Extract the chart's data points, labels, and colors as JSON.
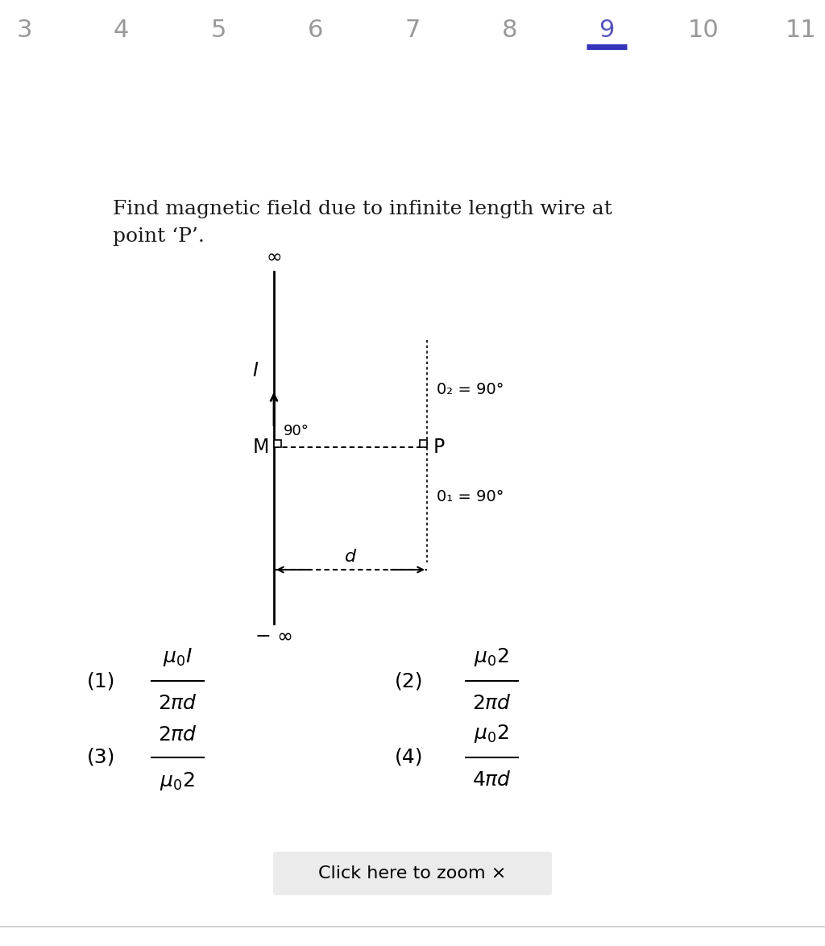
{
  "bg_color": "#ffffff",
  "nav_numbers": [
    "3",
    "4",
    "5",
    "6",
    "7",
    "8",
    "9",
    "10",
    "11"
  ],
  "nav_active": "9",
  "nav_color": "#5555bb",
  "nav_inactive_color": "#999999",
  "nav_underline_color": "#3333bb",
  "question_fontsize": 18,
  "diagram": {
    "inf_top_label": "∞",
    "inf_bottom_label": "− ∞",
    "I_label": "I",
    "M_label": "M",
    "P_label": "P",
    "theta2_label": "0₂ = 90°",
    "theta1_label": "0₁ = 90°",
    "angle90_label": "90°",
    "d_label": "d"
  },
  "options": [
    {
      "num": "(1)",
      "numer": "$\\mu_0 I$",
      "denom": "$2\\pi d$"
    },
    {
      "num": "(2)",
      "numer": "$\\mu_0 2$",
      "denom": "$2\\pi d$"
    },
    {
      "num": "(3)",
      "numer": "$2\\pi d$",
      "denom": "$\\mu_0 2$"
    },
    {
      "num": "(4)",
      "numer": "$\\mu_0 2$",
      "denom": "$4\\pi d$"
    }
  ],
  "click_zoom_text": "Click here to zoom ⨯",
  "text_color": "#1a1a1a"
}
